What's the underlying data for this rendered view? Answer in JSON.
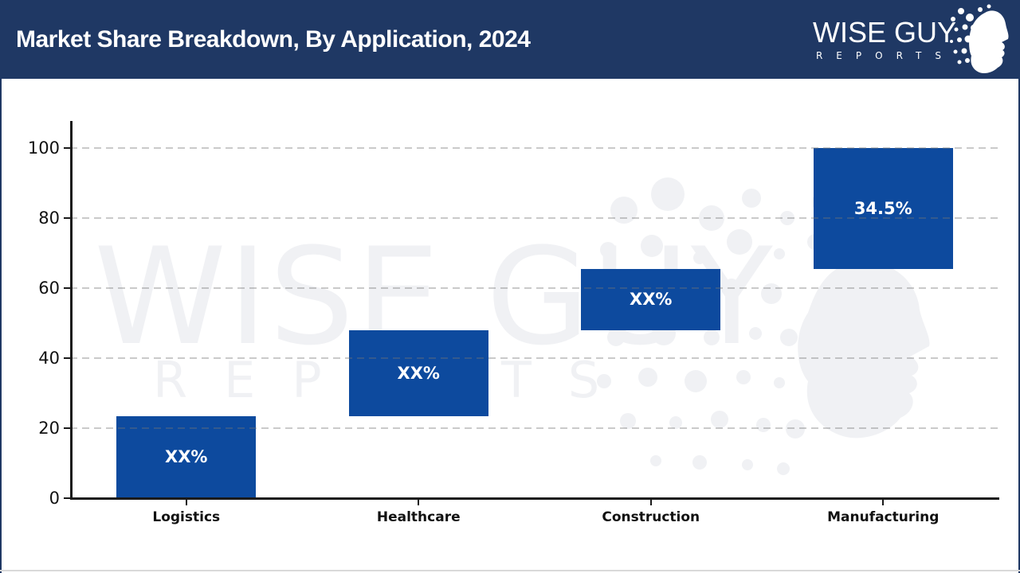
{
  "header": {
    "title": "Market Share Breakdown, By Application, 2024",
    "logo": {
      "line1": "WISE GUY",
      "line2": "REPORTS"
    }
  },
  "watermark": {
    "line1": "WISE GUY",
    "line2": "REPORTS"
  },
  "colors": {
    "header_bg": "#1f3864",
    "bar": "#0d4a9e",
    "axis": "#1a1a1a",
    "watermark": "#f0f1f4",
    "bar_label": "#ffffff",
    "edge": "#1f3864"
  },
  "chart_data": {
    "type": "bar",
    "subtype": "waterfall",
    "title": "Market Share Breakdown, By Application, 2024",
    "xlabel": "",
    "ylabel": "",
    "categories": [
      "Logistics",
      "Healthcare",
      "Construction",
      "Manufacturing"
    ],
    "segments": [
      {
        "category": "Logistics",
        "base": 0,
        "value": 23.5,
        "label": "XX%"
      },
      {
        "category": "Healthcare",
        "base": 23.5,
        "value": 24.5,
        "label": "XX%"
      },
      {
        "category": "Construction",
        "base": 48,
        "value": 17.5,
        "label": "XX%"
      },
      {
        "category": "Manufacturing",
        "base": 65.5,
        "value": 34.5,
        "label": "34.5%"
      }
    ],
    "yticks": [
      0,
      20,
      40,
      60,
      80,
      100
    ],
    "ylim": [
      0,
      108
    ],
    "grid": "horizontal-dashed",
    "legend": "none"
  }
}
